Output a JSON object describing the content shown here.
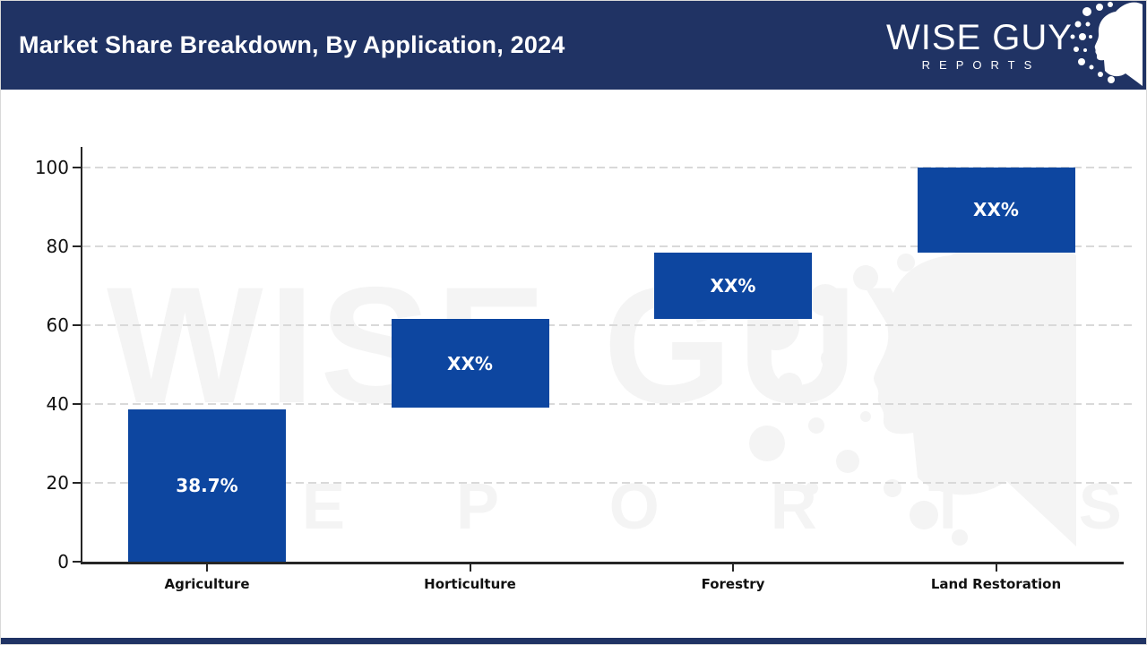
{
  "header": {
    "title": "Market Share Breakdown, By Application, 2024",
    "brand": {
      "line1": "WISE GUY",
      "line2": "REPORTS"
    }
  },
  "watermark": {
    "line1": "WISE GUY",
    "line2": "R E P O R T S"
  },
  "chart_data": {
    "type": "bar",
    "subtype": "waterfall",
    "title": "Market Share Breakdown, By Application, 2024",
    "categories": [
      "Agriculture",
      "Horticulture",
      "Forestry",
      "Land Restoration"
    ],
    "bars": [
      {
        "category": "Agriculture",
        "start": 0,
        "end": 38.7,
        "label": "38.7%"
      },
      {
        "category": "Horticulture",
        "start": 39.0,
        "end": 61.5,
        "label": "XX%"
      },
      {
        "category": "Forestry",
        "start": 61.5,
        "end": 78.5,
        "label": "XX%"
      },
      {
        "category": "Land Restoration",
        "start": 78.5,
        "end": 100,
        "label": "XX%"
      }
    ],
    "ylabel": "",
    "xlabel": "",
    "ylim": [
      0,
      105
    ],
    "yticks": [
      0,
      20,
      40,
      60,
      80,
      100
    ],
    "grid": "horizontal-dashed",
    "legend": "none"
  },
  "colors": {
    "header_bg": "#203364",
    "footer_bg": "#203364",
    "bar": "#0d46a0",
    "bar_label": "#ffffff",
    "axis": "#262626",
    "gridline": "#d9d9d9",
    "watermark": "#f4f4f4"
  }
}
